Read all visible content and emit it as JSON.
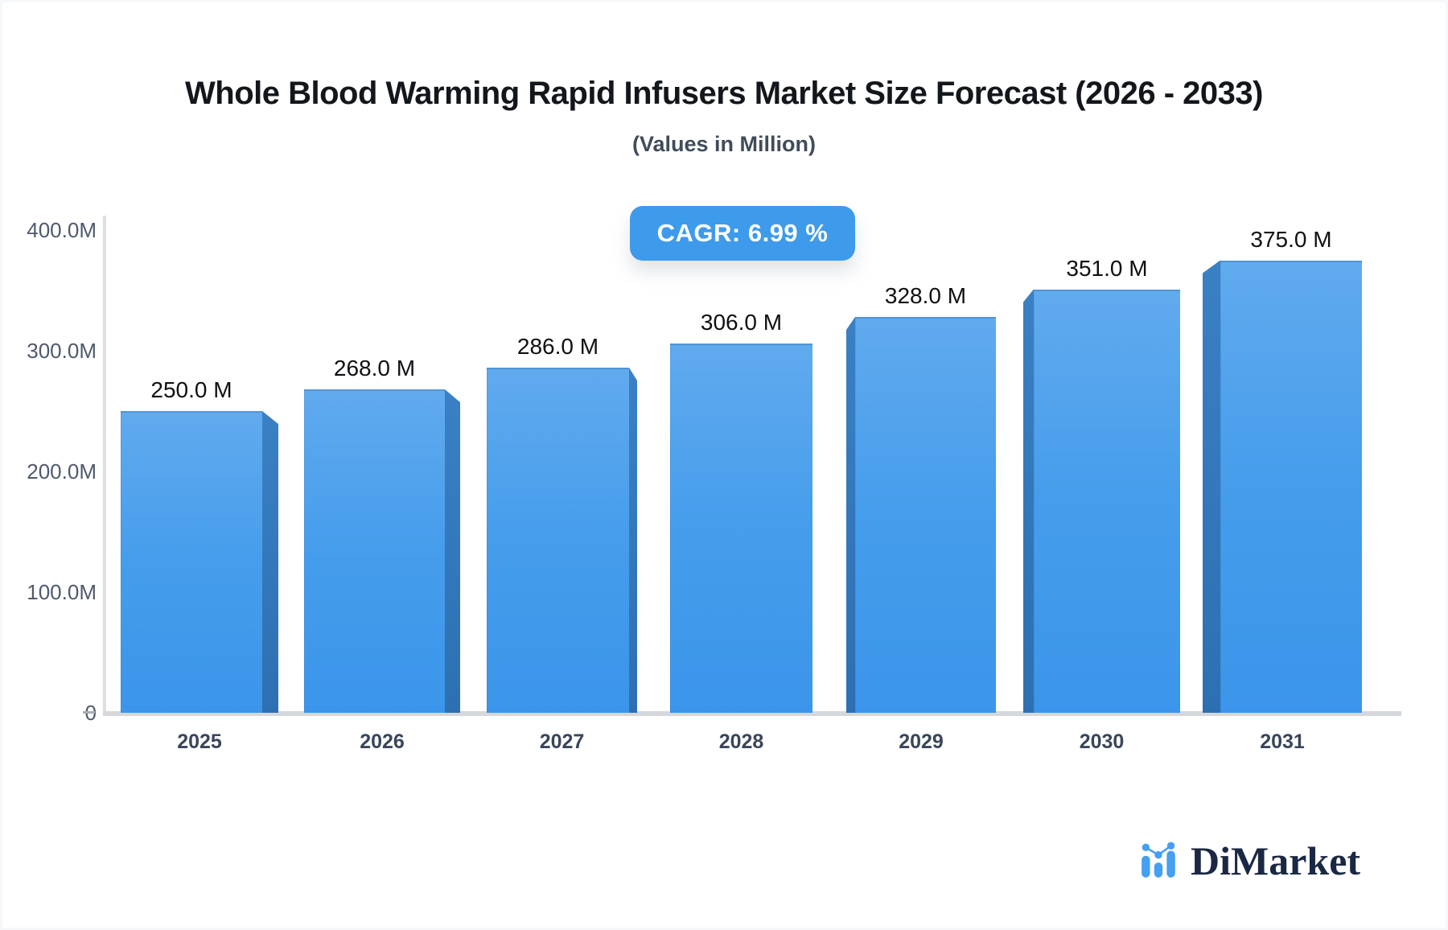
{
  "header": {
    "title": "Whole Blood Warming Rapid Infusers Market Size Forecast (2026 - 2033)",
    "subtitle": "(Values in Million)"
  },
  "cagr_badge": {
    "label": "CAGR: 6.99 %",
    "background": "#3e9aeb",
    "text_color": "#ffffff"
  },
  "chart_data": {
    "type": "bar",
    "title": "Whole Blood Warming Rapid Infusers Market Size Forecast (2026 - 2033)",
    "subtitle": "(Values in Million)",
    "categories": [
      "2025",
      "2026",
      "2027",
      "2028",
      "2029",
      "2030",
      "2031"
    ],
    "values": [
      250,
      268,
      286,
      306,
      328,
      351,
      375
    ],
    "value_labels": [
      "250.0 M",
      "268.0 M",
      "286.0 M",
      "306.0 M",
      "328.0 M",
      "351.0 M",
      "375.0 M"
    ],
    "cagr": "6.99 %",
    "ylim": [
      0,
      400
    ],
    "yticks": [
      {
        "label": "400.0M",
        "value": 400
      },
      {
        "label": "300.0M",
        "value": 300
      },
      {
        "label": "200.0M",
        "value": 200
      },
      {
        "label": "100.0M",
        "value": 100
      },
      {
        "label": "0",
        "value": 0
      }
    ],
    "grid": false,
    "legend": "none",
    "bar_color_top": "#61aaee",
    "bar_color_bottom": "#3b95ea",
    "bar_side_color": "#2d70b2",
    "axis_color": "#d4d8dc"
  },
  "logo": {
    "text": "DiMarket",
    "icon": "bar-chart-sparkline-icon",
    "icon_color": "#459ff2",
    "text_color": "#1b2844"
  }
}
